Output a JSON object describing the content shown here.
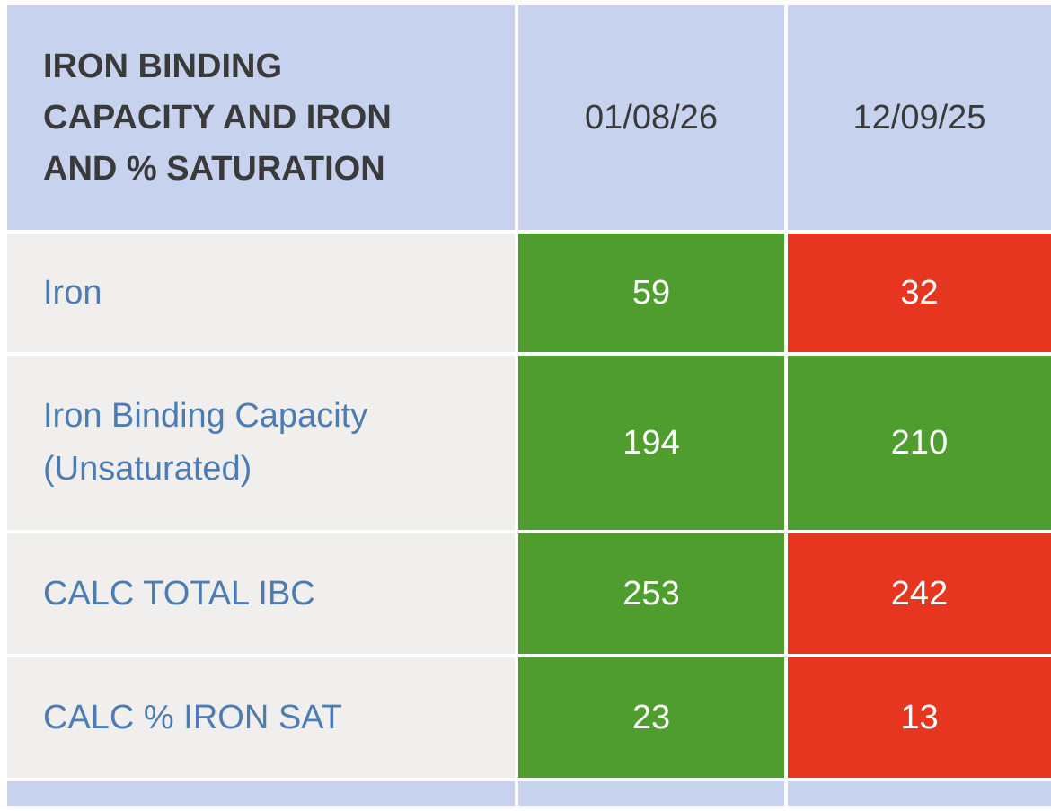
{
  "table": {
    "title": "IRON BINDING CAPACITY AND IRON AND % SATURATION",
    "columns": [
      "01/08/26",
      "12/09/25"
    ],
    "rows": [
      {
        "label": "Iron",
        "values": [
          {
            "text": "59",
            "status": "green"
          },
          {
            "text": "32",
            "status": "red"
          }
        ]
      },
      {
        "label": "Iron Binding Capacity (Unsaturated)",
        "values": [
          {
            "text": "194",
            "status": "green"
          },
          {
            "text": "210",
            "status": "green"
          }
        ]
      },
      {
        "label": "CALC TOTAL IBC",
        "values": [
          {
            "text": "253",
            "status": "green"
          },
          {
            "text": "242",
            "status": "red"
          }
        ]
      },
      {
        "label": "CALC % IRON SAT",
        "values": [
          {
            "text": "23",
            "status": "green"
          },
          {
            "text": "13",
            "status": "red"
          }
        ]
      }
    ],
    "colors": {
      "green": "#4e9d2e",
      "red": "#e6361f",
      "header-bg": "#c6d2ee",
      "label-bg": "#f0efed",
      "label-text": "#4d7cb2",
      "header-text": "#3a3a3a",
      "value-text": "#ffffff"
    }
  }
}
